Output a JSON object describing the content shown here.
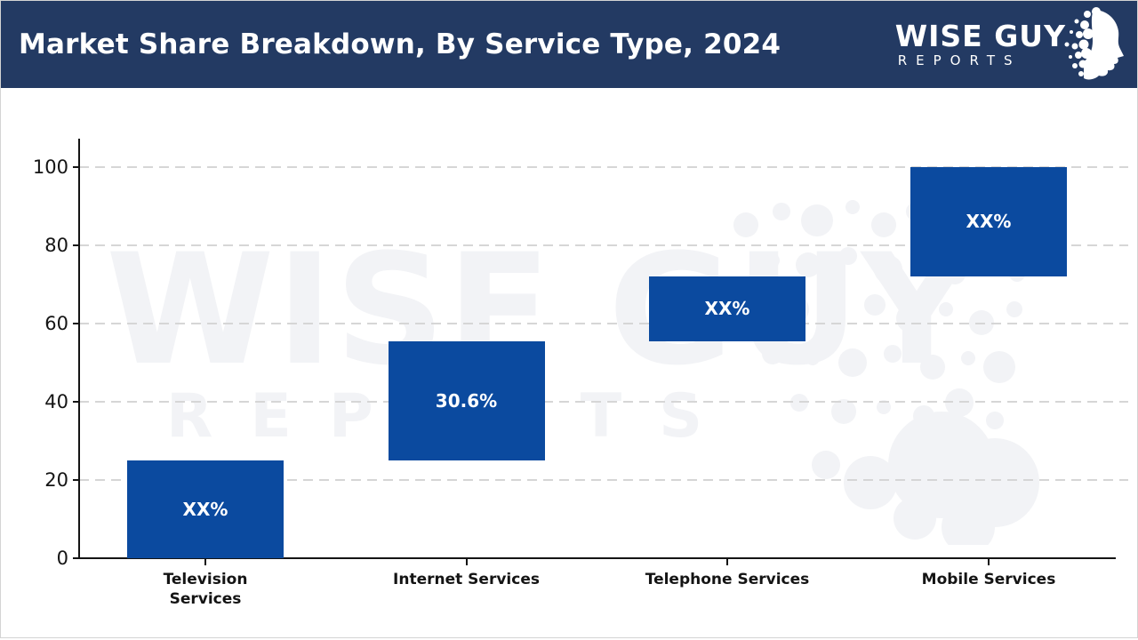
{
  "header": {
    "title": "Market Share Breakdown, By Service Type, 2024",
    "bg_color": "#233a63",
    "logo": {
      "line1": "WISE GUY",
      "line2": "REPORTS"
    }
  },
  "watermark": {
    "line1": "WISE GUY",
    "line2": "REPORTS"
  },
  "chart_data": {
    "type": "bar",
    "subtype": "floating-waterfall",
    "title": "Market Share Breakdown, By Service Type, 2024",
    "categories": [
      "Television\nServices",
      "Internet Services",
      "Telephone Services",
      "Mobile Services"
    ],
    "segments": [
      {
        "category": "Television Services",
        "start": 0,
        "end": 24.9,
        "label": "XX%"
      },
      {
        "category": "Internet Services",
        "start": 24.9,
        "end": 55.5,
        "label": "30.6%"
      },
      {
        "category": "Telephone Services",
        "start": 55.5,
        "end": 71.9,
        "label": "XX%"
      },
      {
        "category": "Mobile Services",
        "start": 71.9,
        "end": 100,
        "label": "XX%"
      }
    ],
    "yticks": [
      0,
      20,
      40,
      60,
      80,
      100
    ],
    "ytick_labels": [
      "0",
      "20",
      "40",
      "60",
      "80",
      "100"
    ],
    "ylim": [
      0,
      107
    ],
    "grid": "horizontal-dashed",
    "legend": "none",
    "bar_color": "#0b4a9f",
    "label_color": "#ffffff",
    "axis_color": "#141414",
    "grid_color": "#d6d6d6"
  }
}
